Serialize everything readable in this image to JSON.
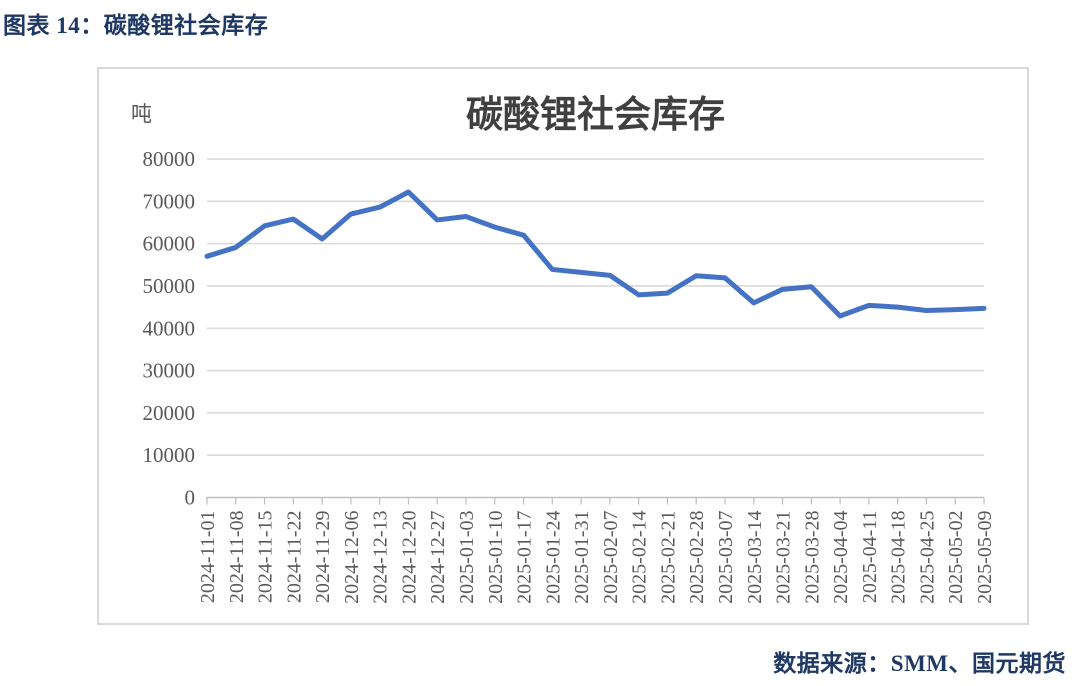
{
  "page": {
    "header_caption": "图表 14：碳酸锂社会库存",
    "source_caption": "数据来源：SMM、国元期货"
  },
  "colors": {
    "caption_text": "#1F3864",
    "series_line": "#4472C4",
    "gridline": "#D9D9D9",
    "axis_line": "#BFBFBF",
    "axis_text": "#595959",
    "title_text": "#404040",
    "chart_border": "#D9D9D9",
    "background": "#FFFFFF"
  },
  "chart_data": {
    "type": "line",
    "title": "碳酸锂社会库存",
    "unit_label": "吨",
    "xlabel": "",
    "ylabel": "",
    "ylim": [
      0,
      80000
    ],
    "ytick_step": 10000,
    "yticks": [
      0,
      10000,
      20000,
      30000,
      40000,
      50000,
      60000,
      70000,
      80000
    ],
    "grid": true,
    "legend_position": "none",
    "x_label_rotation_deg": -90,
    "categories": [
      "2024-11-01",
      "2024-11-08",
      "2024-11-15",
      "2024-11-22",
      "2024-11-29",
      "2024-12-06",
      "2024-12-13",
      "2024-12-20",
      "2024-12-27",
      "2025-01-03",
      "2025-01-10",
      "2025-01-17",
      "2025-01-24",
      "2025-01-31",
      "2025-02-07",
      "2025-02-14",
      "2025-02-21",
      "2025-02-28",
      "2025-03-07",
      "2025-03-14",
      "2025-03-21",
      "2025-03-28",
      "2025-04-04",
      "2025-04-11",
      "2025-04-18",
      "2025-04-25",
      "2025-05-02",
      "2025-05-09"
    ],
    "series": [
      {
        "name": "碳酸锂社会库存",
        "color": "#4472C4",
        "values": [
          57000,
          59100,
          64200,
          65800,
          61100,
          67000,
          68600,
          72200,
          65600,
          66400,
          63900,
          62000,
          53900,
          53200,
          52500,
          47900,
          48300,
          52400,
          51900,
          46000,
          49200,
          49800,
          42900,
          45400,
          45000,
          44200,
          44400,
          44700
        ]
      }
    ]
  }
}
